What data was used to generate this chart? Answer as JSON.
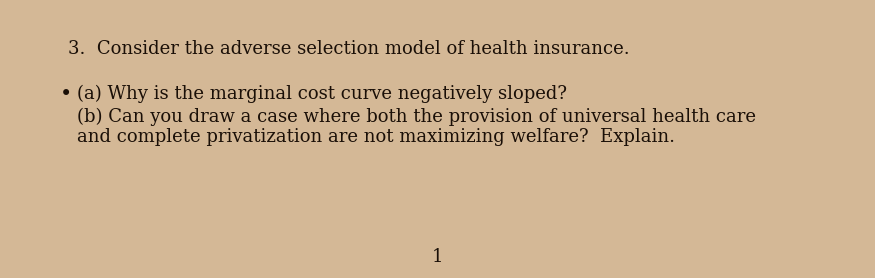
{
  "background_color": "#d4b896",
  "number_label": "3.",
  "title_text": "Consider the adverse selection model of health insurance.",
  "bullet": "•",
  "line_a": "(a) Why is the marginal cost curve negatively sloped?",
  "line_b1": "(b) Can you draw a case where both the provision of universal health care",
  "line_b2": "and complete privatization are not maximizing welfare?  Explain.",
  "page_number": "1",
  "font_family": "serif",
  "title_fontsize": 13.0,
  "body_fontsize": 13.0,
  "page_fontsize": 13.0,
  "text_color": "#1a0f07",
  "fig_width": 8.75,
  "fig_height": 2.78,
  "dpi": 100
}
